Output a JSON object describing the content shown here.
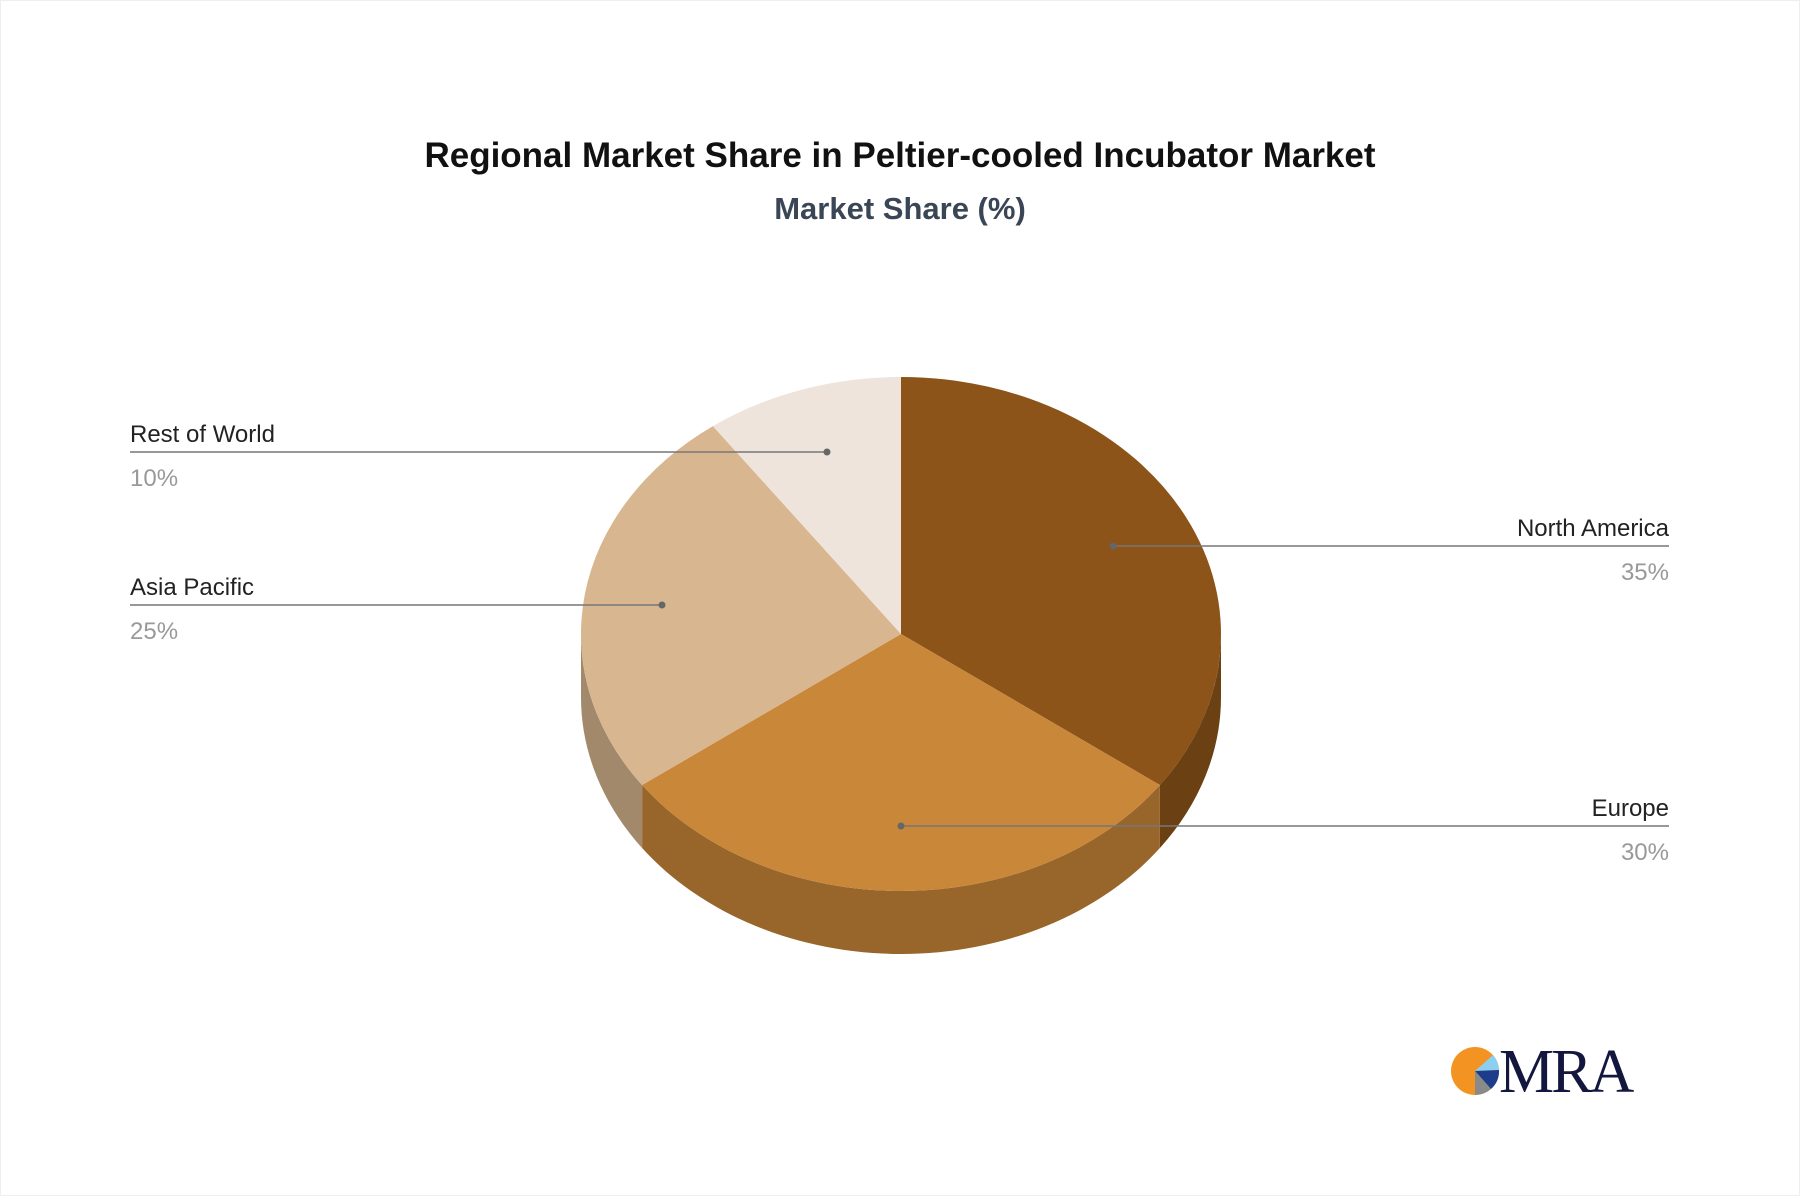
{
  "chart_data": {
    "type": "pie",
    "title": "Regional Market Share in Peltier-cooled Incubator Market",
    "subtitle": "Market Share (%)",
    "style": "3d",
    "slices": [
      {
        "label": "North America",
        "value": 35,
        "value_label": "35%",
        "color": "#8c5419",
        "side_color": "#6b4013"
      },
      {
        "label": "Europe",
        "value": 30,
        "value_label": "30%",
        "color": "#c9873a",
        "side_color": "#98652a"
      },
      {
        "label": "Asia Pacific",
        "value": 25,
        "value_label": "25%",
        "color": "#d8b690",
        "side_color": "#a3896c"
      },
      {
        "label": "Rest of World",
        "value": 10,
        "value_label": "10%",
        "color": "#eee4db",
        "side_color": "#c9bfb5"
      }
    ]
  },
  "logo": {
    "text": "MRA",
    "colors": [
      "#f39321",
      "#8ccff0",
      "#1d3c8c",
      "#8a8a8a"
    ]
  }
}
